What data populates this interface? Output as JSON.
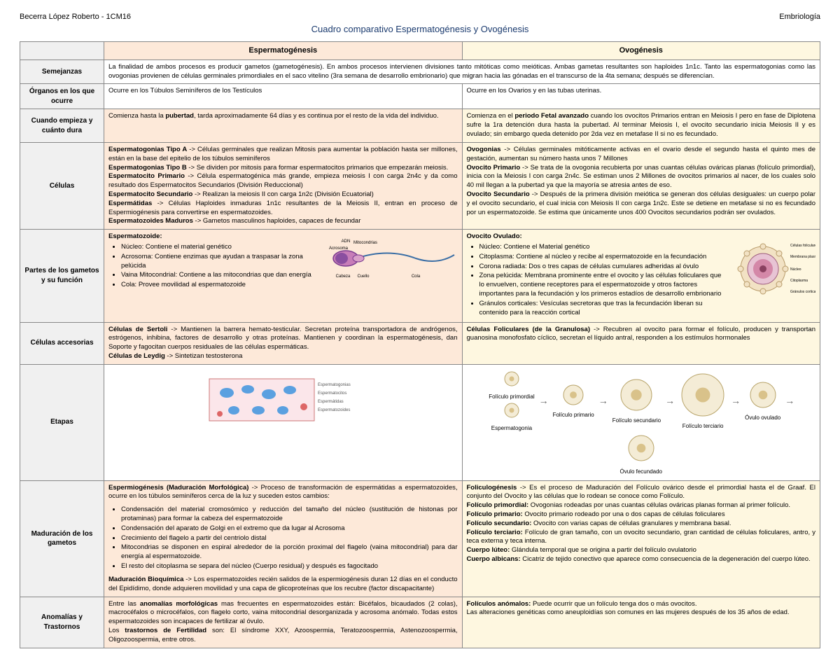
{
  "header": {
    "left": "Becerra López Roberto - 1CM16",
    "right": "Embriología",
    "title": "Cuadro comparativo Espermatogénesis y Ovogénesis"
  },
  "columns": {
    "esp": "Espermatogénesis",
    "ovo": "Ovogénesis"
  },
  "colors": {
    "esp_bg": "#fde9d9",
    "ovo_bg": "#fef7e0",
    "label_bg": "#f0f0f0",
    "title_color": "#1a3a6e"
  },
  "rows": {
    "semejanzas": {
      "label": "Semejanzas",
      "text": "La finalidad de ambos procesos es producir gametos (gametogénesis). En ambos procesos intervienen divisiones tanto mitóticas como meióticas. Ambas gametas resultantes son haploides 1n1c. Tanto las espermatogonias como las ovogonias provienen de células germinales primordiales en el saco vitelino (3ra semana de desarrollo embrionario) que migran hacia las gónadas en el transcurso de la 4ta semana; después se diferencían."
    },
    "organos": {
      "label": "Órganos en los que ocurre",
      "esp": "Ocurre en los Túbulos Seminíferos de los Testículos",
      "ovo": "Ocurre en los Ovarios y en las tubas uterinas."
    },
    "cuando": {
      "label": "Cuando empieza y cuánto dura",
      "esp_pre": "Comienza hasta la ",
      "esp_bold": "pubertad",
      "esp_post": ", tarda aproximadamente 64 días y es continua por el resto de la vida del individuo.",
      "ovo_pre": "Comienza en el ",
      "ovo_bold": "periodo Fetal avanzado",
      "ovo_post": " cuando los ovocitos Primarios entran en Meiosis I pero en fase de Diplotena sufre la 1ra detención dura hasta la pubertad. Al terminar Meiosis I, el ovocito secundario inicia Meiosis II y es ovulado; sin embargo queda detenido por 2da vez en metafase II si no es fecundado."
    },
    "celulas": {
      "label": "Células",
      "esp": [
        {
          "b": "Espermatogonias Tipo A",
          "t": " -> Células germinales que realizan Mitosis para aumentar la población hasta ser millones, están en la base del epitelio de los túbulos seminíferos"
        },
        {
          "b": "Espermatogonias Tipo B",
          "t": " -> Se dividen por mitosis para formar espermatocitos primarios que empezarán meiosis."
        },
        {
          "b": "Espermatocito Primario",
          "t": " -> Célula espermatogénica más grande, empieza meiosis I con carga 2n4c y da como resultado dos Espermatocitos Secundarios (División Reduccional)"
        },
        {
          "b": "Espermatocito Secundario",
          "t": " -> Realizan la meiosis II con carga 1n2c (División Ecuatorial)"
        },
        {
          "b": "Espermátidas",
          "t": " -> Células Haploides inmaduras 1n1c resultantes de la Meiosis II, entran en proceso de Espermiogénesis para convertirse en espermatozoides."
        },
        {
          "b": "Espermatozoides Maduros",
          "t": " -> Gametos masculinos haploides, capaces de fecundar"
        }
      ],
      "ovo": [
        {
          "b": "Ovogonias",
          "t": " -> Células germinales mitóticamente activas en el ovario desde el segundo hasta el quinto mes de gestación, aumentan su número hasta unos 7 Millones"
        },
        {
          "b": "Ovocito Primario",
          "t": " -> Se trata de la ovogonia recubierta por unas cuantas células ováricas planas (folículo primordial), inicia con la Meiosis I con carga 2n4c. Se estiman unos 2 Millones de ovocitos primarios al nacer, de los cuales solo 40 mil llegan a la pubertad ya que la mayoría se atresia antes de eso."
        },
        {
          "b": "Ovocito Secundario",
          "t": " -> Después de la primera división meiótica se generan dos células desiguales: un cuerpo polar y el ovocito secundario, el cual inicia con Meiosis II con carga 1n2c. Este se detiene en metafase si no es fecundado por un espermatozoide. Se estima que únicamente unos 400 Ovocitos secundarios podrán ser ovulados."
        }
      ]
    },
    "partes": {
      "label": "Partes de los gametos y su función",
      "esp_title": "Espermatozoide:",
      "esp_items": [
        "Núcleo: Contiene el material genético",
        "Acrosoma: Contiene enzimas que ayudan a traspasar la zona pelúcida",
        "Vaina Mitocondrial: Contiene a las mitocondrias que dan energía",
        "Cola: Provee movilidad al espermatozoide"
      ],
      "esp_diagram_labels": {
        "adn": "ADN",
        "mito": "Mitocondrias",
        "acro": "Acrosoma",
        "cabeza": "Cabeza",
        "cuello": "Cuello",
        "cola": "Cola"
      },
      "ovo_title": "Ovocito Ovulado:",
      "ovo_items": [
        "Núcleo: Contiene el Material genético",
        "Citoplasma: Contiene al núcleo y recibe al espermatozoide en la fecundación",
        "Corona radiada: Dos o tres capas de células cumulares adheridas al óvulo",
        "Zona pelúcida: Membrana prominente entre el ovocito y las células foliculares que lo envuelven, contiene receptores para el espermatozoide y otros factores importantes para la fecundación y los primeros estadíos de desarrollo embrionario",
        "Gránulos corticales: Vesículas secretoras que tras la fecundación liberan su contenido para la reacción cortical"
      ],
      "ovo_diagram_labels": {
        "corona": "Células foliculares de corona radiada",
        "zona": "Membrana plasmática",
        "nucleo": "Núcleo",
        "cito": "Citoplasma",
        "gran": "Gránulos corticales"
      }
    },
    "accesorias": {
      "label": "Células accesorias",
      "esp1_b": "Células de Sertoli",
      "esp1_t": " -> Mantienen la barrera hemato-testicular. Secretan proteína transportadora de andrógenos, estrógenos, inhibina, factores de desarrollo y otras proteínas. Mantienen y coordinan la espermatogénesis, dan Soporte y fagocitan cuerpos residuales de las células espermáticas.",
      "esp2_b": "Células de Leydig",
      "esp2_t": " -> Sintetizan testosterona",
      "ovo_b": "Células Foliculares (de la Granulosa)",
      "ovo_t": " -> Recubren al ovocito para formar el folículo, producen y transportan guanosina monofosfato cíclico, secretan el líquido antral, responden a los estímulos hormonales"
    },
    "etapas": {
      "label": "Etapas",
      "ovo_stages": [
        {
          "label": "Folículo primordial",
          "r": 10
        },
        {
          "label": "Espermatogonia",
          "r": 10
        },
        {
          "label": "Folículo primario",
          "r": 14
        },
        {
          "label": "Folículo secundario",
          "r": 22
        },
        {
          "label": "Folículo terciario",
          "r": 30
        },
        {
          "label": "Óvulo ovulado",
          "r": 18
        },
        {
          "label": "Óvulo fecundado",
          "r": 18
        }
      ]
    },
    "maduracion": {
      "label": "Maduración de los gametos",
      "esp_title_b": "Espermiogénesis (Maduración Morfológica)",
      "esp_title_t": " -> Proceso de transformación de espermátidas a espermatozoides, ocurre en los túbulos seminíferos cerca de la luz y suceden estos cambios:",
      "esp_items": [
        "Condensación del material cromosómico y reducción del tamaño del núcleo (sustitución de histonas por protaminas) para formar la cabeza del espermatozoide",
        "Condensación del aparato de Golgi en el extremo que da lugar al Acrosoma",
        "Crecimiento del flagelo a partir del centriolo distal",
        "Mitocondrias se disponen en espiral alrededor de la porción proximal del flagelo (vaina mitocondrial) para dar energía al espermatozoide.",
        "El resto del citoplasma se separa del núcleo (Cuerpo residual) y después es fagocitado"
      ],
      "esp_sub_b": "Maduración Bioquímica",
      "esp_sub_t": " -> Los espermatozoides recién salidos de la espermiogénesis duran 12 días en el conducto del Epidídimo, donde adquieren movilidad y una capa de glicoproteínas que los recubre (factor discapacitante)",
      "ovo_title_b": "Foliculogénesis",
      "ovo_title_t": " -> Es el proceso de Maduración del Folículo ovárico desde el primordial hasta el de Graaf. El conjunto del Ovocito y las células que lo rodean se conoce como Folículo.",
      "ovo_items": [
        {
          "b": "Folículo primordial:",
          "t": " Ovogonias rodeadas por unas cuantas células ováricas planas forman al primer folículo."
        },
        {
          "b": "Folículo primario:",
          "t": " Ovocito primario rodeado por una o dos capas de células foliculares"
        },
        {
          "b": "Folículo secundario:",
          "t": " Ovocito con varias capas de células granulares y membrana basal."
        },
        {
          "b": "Folículo terciario:",
          "t": " Folículo de gran tamaño, con un ovocito secundario, gran cantidad de células foliculares, antro, y teca externa y teca interna."
        },
        {
          "b": "Cuerpo lúteo:",
          "t": " Glándula temporal que se origina a partir del folículo ovulatorio"
        },
        {
          "b": "Cuerpo albicans:",
          "t": " Cicatriz de tejido conectivo que aparece como consecuencia de la degeneración del cuerpo lúteo."
        }
      ]
    },
    "anomalias": {
      "label": "Anomalías y Trastornos",
      "esp1_pre": "Entre las ",
      "esp1_b": "anomalías morfológicas",
      "esp1_post": " mas frecuentes en espermatozoides están: Bicéfalos, bicaudados (2 colas), macrocéfalos o microcéfalos, con flagelo corto, vaina mitocondrial desorganizada y acrosoma anómalo. Todas estos espermatozoides son incapaces de fertilizar al óvulo.",
      "esp2_pre": "Los ",
      "esp2_b": "trastornos de Fertilidad",
      "esp2_post": " son: El síndrome XXY, Azoospermia, Teratozoospermia, Astenozoospermia, Oligozoospermia, entre otros.",
      "ovo1_b": "Folículos anómalos:",
      "ovo1_t": " Puede ocurrir que un folículo tenga dos o más ovocitos.",
      "ovo2": "Las alteraciones genéticas como aneuploidías son comunes en las mujeres después de los 35 años de edad."
    }
  }
}
